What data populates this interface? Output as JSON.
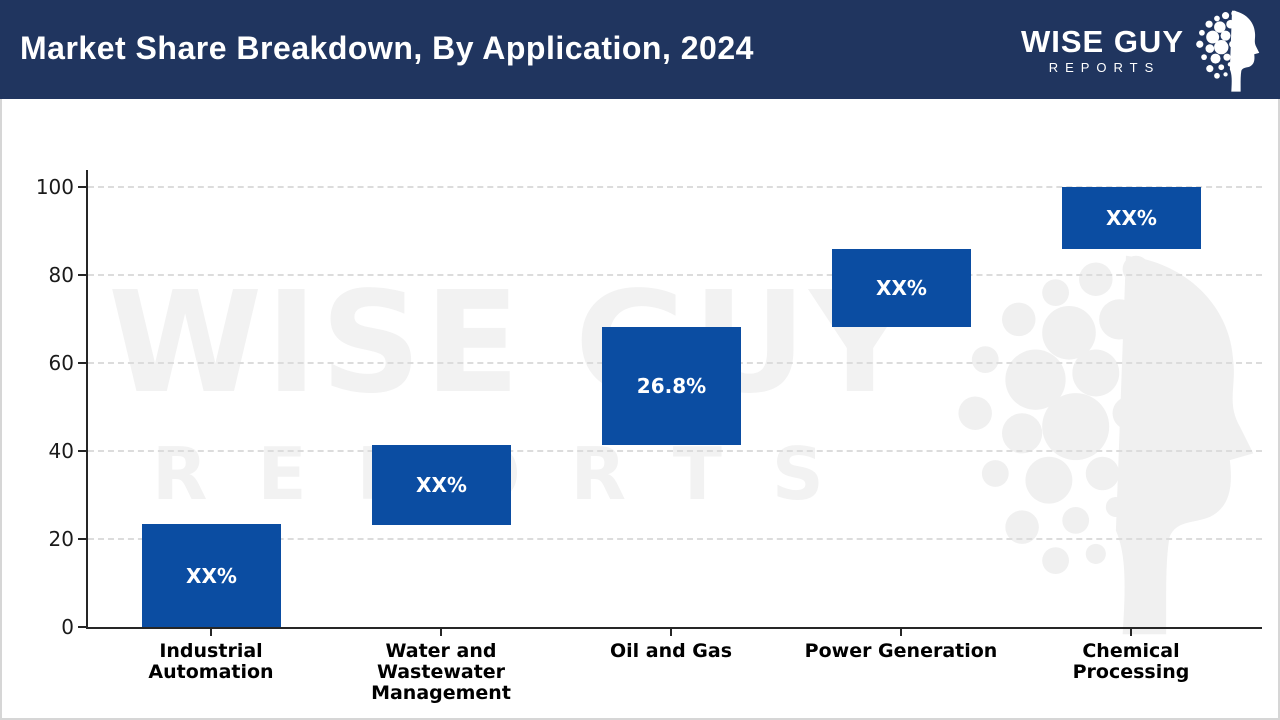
{
  "header": {
    "title": "Market Share Breakdown, By Application, 2024",
    "background": "#20355f",
    "logo": {
      "line1": "WISE GUY",
      "line2": "REPORTS"
    }
  },
  "watermark": {
    "line1": "WISE GUY",
    "line2": "REPORTS"
  },
  "chart_data": {
    "type": "bar",
    "subtype": "waterfall",
    "title": "Market Share Breakdown, By Application, 2024",
    "categories": [
      "Industrial Automation",
      "Water and Wastewater Management",
      "Oil and Gas",
      "Power Generation",
      "Chemical Processing"
    ],
    "category_labels": [
      "Industrial\nAutomation",
      "Water and\nWastewater\nManagement",
      "Oil and Gas",
      "Power Generation",
      "Chemical\nProcessing"
    ],
    "segments": [
      {
        "category": "Industrial Automation",
        "start": 0,
        "end": 23.3,
        "value": 23.3,
        "label": "XX%"
      },
      {
        "category": "Water and Wastewater Management",
        "start": 23.3,
        "end": 41.4,
        "value": 18.1,
        "label": "XX%"
      },
      {
        "category": "Oil and Gas",
        "start": 41.4,
        "end": 68.2,
        "value": 26.8,
        "label": "26.8%"
      },
      {
        "category": "Power Generation",
        "start": 68.2,
        "end": 85.9,
        "value": 17.7,
        "label": "XX%"
      },
      {
        "category": "Chemical Processing",
        "start": 85.9,
        "end": 100,
        "value": 14.1,
        "label": "XX%"
      }
    ],
    "xlabel": "",
    "ylabel": "",
    "ylim": [
      0,
      100
    ],
    "yticks": [
      0,
      20,
      40,
      60,
      80,
      100
    ],
    "grid": "horizontal-dashed",
    "legend": "none",
    "bar_color": "#0b4da2"
  }
}
